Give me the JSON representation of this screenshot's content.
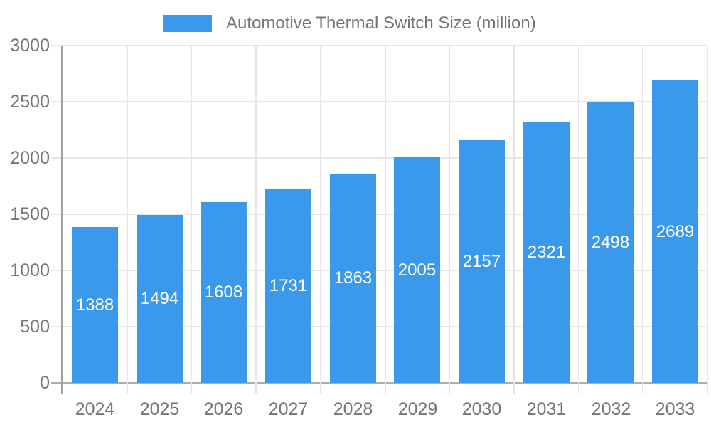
{
  "legend": {
    "label": "Automotive Thermal Switch Size (million)"
  },
  "chart_data": {
    "type": "bar",
    "title": "Automotive Thermal Switch Size (million)",
    "categories": [
      "2024",
      "2025",
      "2026",
      "2027",
      "2028",
      "2029",
      "2030",
      "2031",
      "2032",
      "2033"
    ],
    "values": [
      1388,
      1494,
      1608,
      1731,
      1863,
      2005,
      2157,
      2321,
      2498,
      2689
    ],
    "xlabel": "",
    "ylabel": "",
    "ylim": [
      0,
      3000
    ],
    "yticks": [
      0,
      500,
      1000,
      1500,
      2000,
      2500,
      3000
    ],
    "grid": true,
    "legend_position": "top-center",
    "value_labels": "inside-center",
    "colors": {
      "bar": "#3b99ec",
      "value_label": "#ffffff",
      "axis_text": "#757575",
      "grid": "#e6e6e6",
      "axis_line": "#a0a0a0",
      "baseline": "#adadad",
      "background": "#ffffff"
    }
  }
}
